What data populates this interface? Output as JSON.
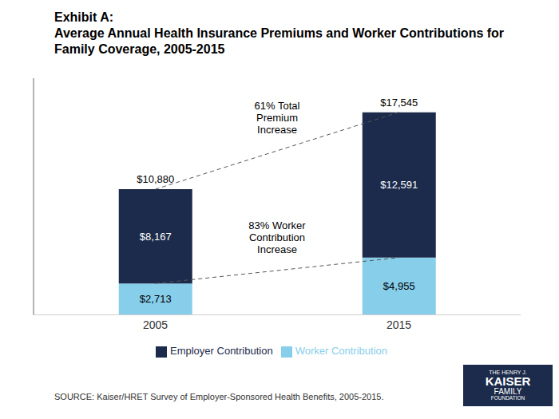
{
  "chart_data": {
    "type": "bar",
    "title": "Exhibit A:\nAverage Annual Health Insurance Premiums and Worker Contributions for\nFamily Coverage, 2005-2015",
    "categories": [
      "2005",
      "2015"
    ],
    "series": [
      {
        "name": "Worker Contribution",
        "color": "#87CEEB",
        "values": [
          2713,
          4955
        ],
        "value_labels": [
          "$2,713",
          "$4,955"
        ]
      },
      {
        "name": "Employer Contribution",
        "color": "#1C2B4B",
        "values": [
          8167,
          12591
        ],
        "value_labels": [
          "$8,167",
          "$12,591"
        ]
      }
    ],
    "totals": [
      10880,
      17545
    ],
    "total_labels": [
      "$10,880",
      "$17,545"
    ],
    "stacked": true,
    "data_labels": true,
    "ylim": [
      0,
      20500
    ],
    "tick_labels": "x",
    "grid": false,
    "legend": "bottom",
    "annotations": [
      "61% Total\nPremium\nIncrease",
      "83% Worker\nContribution\nIncrease"
    ],
    "source": "SOURCE:  Kaiser/HRET Survey of Employer-Sponsored Health Benefits, 2005-2015.",
    "logo": [
      "THE HENRY J.",
      "KAISER",
      "FAMILY",
      "FOUNDATION"
    ]
  }
}
